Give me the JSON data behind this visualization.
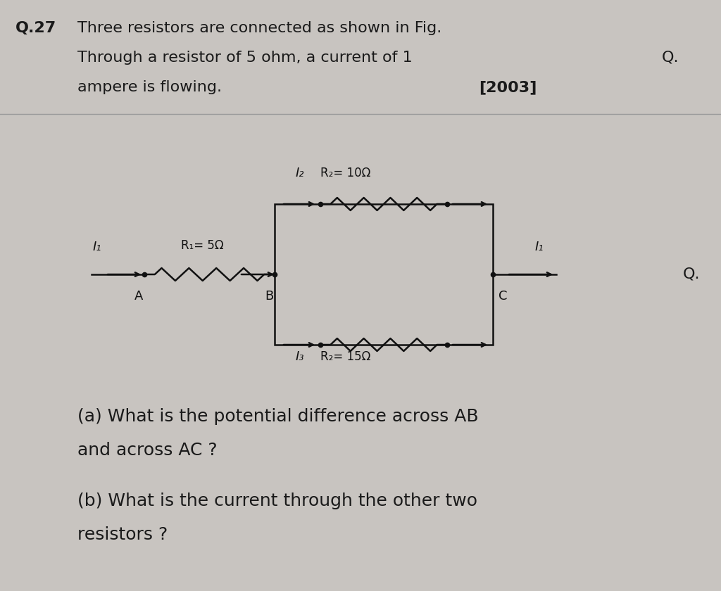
{
  "background_color": "#c8c4c0",
  "title_question": "Q.27",
  "title_text_line1": "Three resistors are connected as shown in Fig.",
  "title_text_line2": "Through a resistor of 5 ohm, a current of 1",
  "side_q": "Q.",
  "title_text_line3": "ampere is flowing.",
  "year_tag": "[2003]",
  "question_a": "(a) What is the potential difference across AB",
  "question_a2": "and across AC ?",
  "question_b": "(b) What is the current through the other two",
  "question_b2": "resistors ?",
  "R1_label": "R₁= 5Ω",
  "R2_label": "R₂= 10Ω",
  "R3_label": "R₂= 15Ω",
  "I1_label": "I₁",
  "I2_label": "I₂",
  "I3_label": "I₃",
  "node_A": "A",
  "node_B": "B",
  "node_C": "C"
}
